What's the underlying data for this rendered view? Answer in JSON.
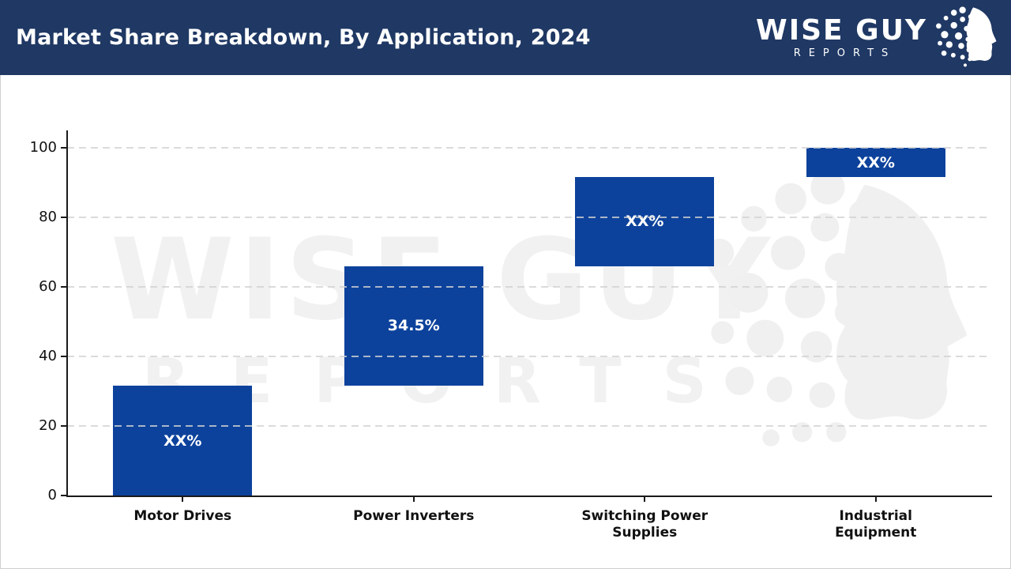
{
  "header": {
    "title": "Market Share Breakdown, By Application, 2024",
    "bg_color": "#1F3864",
    "logo": {
      "line1": "WISE GUY",
      "line2": "REPORTS"
    }
  },
  "watermark": {
    "line1": "WISE GUY",
    "line2": "REPORTS"
  },
  "chart_data": {
    "type": "bar",
    "subtype": "waterfall-segments",
    "title": "Market Share Breakdown, By Application, 2024",
    "categories": [
      "Motor Drives",
      "Power Inverters",
      "Switching Power Supplies",
      "Industrial Equipment"
    ],
    "category_label_lines": [
      [
        "Motor Drives"
      ],
      [
        "Power Inverters"
      ],
      [
        "Switching Power",
        "Supplies"
      ],
      [
        "Industrial",
        "Equipment"
      ]
    ],
    "segments": [
      {
        "category": "Motor Drives",
        "start": 0,
        "end": 31.5,
        "label": "XX%"
      },
      {
        "category": "Power Inverters",
        "start": 31.5,
        "end": 66,
        "label": "34.5%"
      },
      {
        "category": "Switching Power Supplies",
        "start": 66,
        "end": 91.5,
        "label": "XX%"
      },
      {
        "category": "Industrial Equipment",
        "start": 91.5,
        "end": 100,
        "label": "XX%"
      }
    ],
    "ylim": [
      0,
      100
    ],
    "yticks": [
      0,
      20,
      40,
      60,
      80,
      100
    ],
    "grid": "horizontal-dashed",
    "legend": "none",
    "bar_color": "#0C429C",
    "bar_label_color": "#FFFFFF",
    "axis_color": "#1A1A1A"
  }
}
